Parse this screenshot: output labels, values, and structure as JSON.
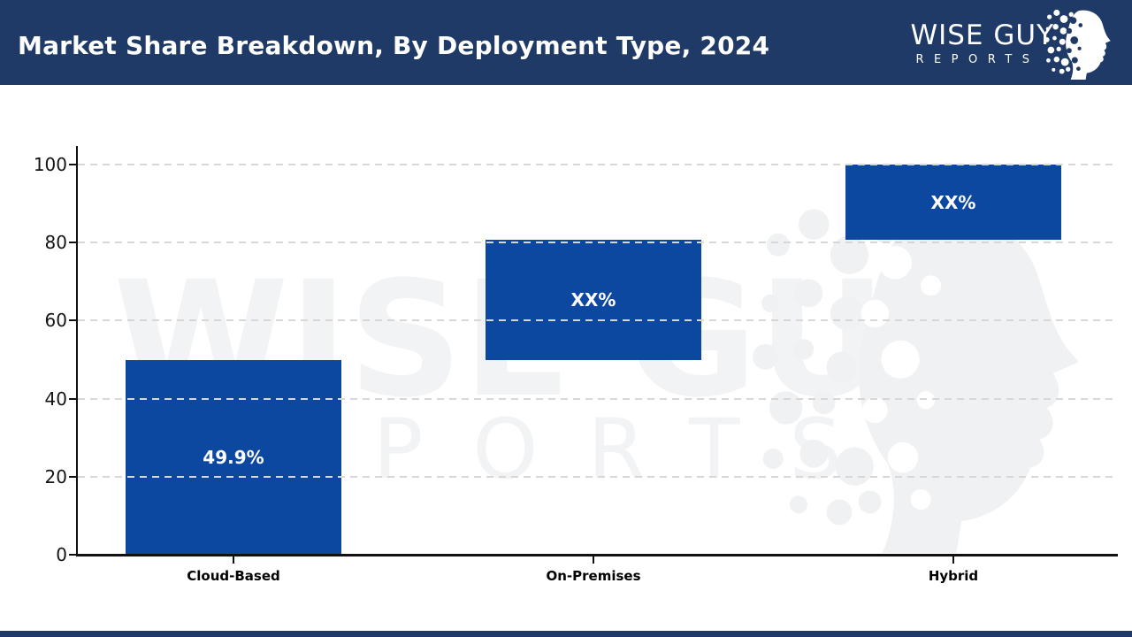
{
  "header": {
    "title": "Market Share Breakdown, By Deployment Type, 2024",
    "logo": {
      "line1": "WISE GUY",
      "line2": "REPORTS"
    }
  },
  "watermark": {
    "line1": "WISE GUY",
    "line2": "REPORTS"
  },
  "colors": {
    "header_bg": "#1f3a66",
    "footer_bg": "#1f3a66",
    "bar_blue": "#0c47a0",
    "watermark_gray": "#f2f3f5"
  },
  "chart_data": {
    "type": "bar",
    "subtype": "floating-segment bars (cumulative market share, waterfall style)",
    "title": "Market Share Breakdown, By Deployment Type, 2024",
    "categories": [
      "Cloud-Based",
      "On-Premises",
      "Hybrid"
    ],
    "segments": [
      {
        "category": "Cloud-Based",
        "start": 0,
        "end": 49.9,
        "label": "49.9%"
      },
      {
        "category": "On-Premises",
        "start": 49.9,
        "end": 80.7,
        "label": "XX%"
      },
      {
        "category": "Hybrid",
        "start": 80.7,
        "end": 100,
        "label": "XX%"
      }
    ],
    "xlabel": "",
    "ylabel": "",
    "ylim": [
      0,
      104.8
    ],
    "yticks": [
      0,
      20,
      40,
      60,
      80,
      100
    ],
    "grid": "horizontal-dashed",
    "legend": "none",
    "bar_color": "#0c47a0",
    "bar_label_color": "#ffffff",
    "axis_color": "#111111",
    "gridline_color": "#d7d7d7"
  }
}
